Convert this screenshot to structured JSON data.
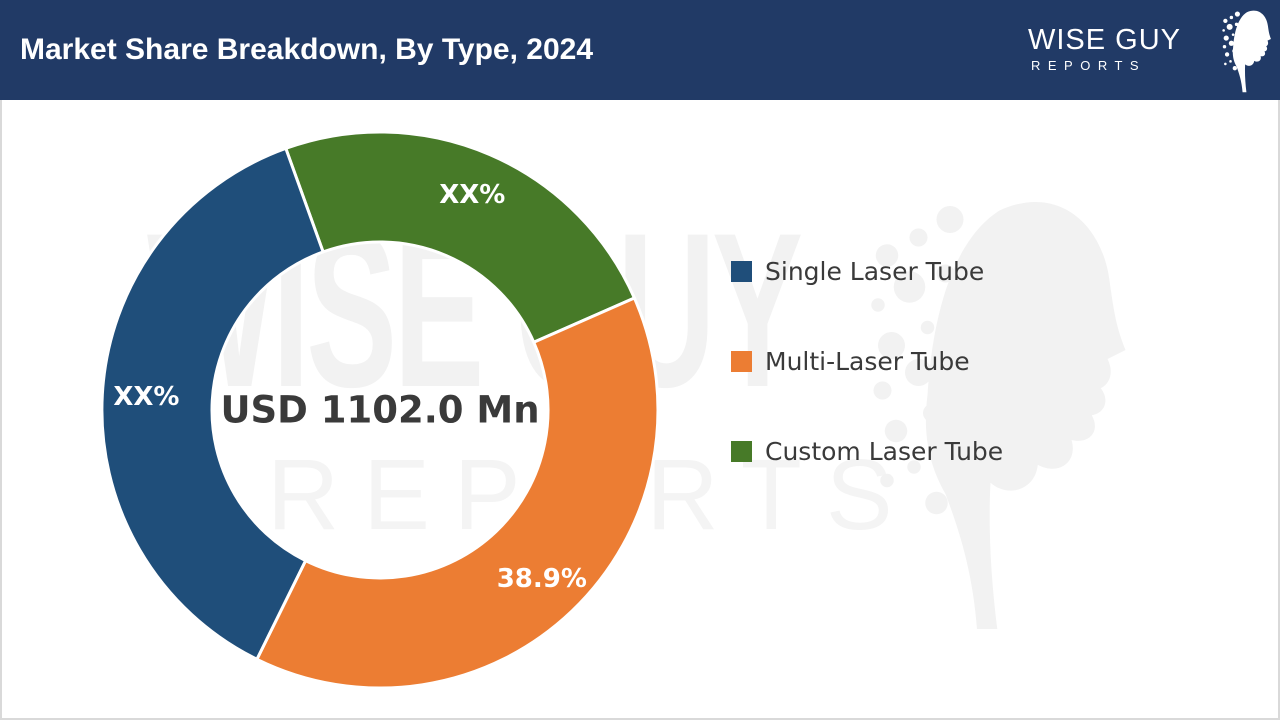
{
  "header": {
    "title": "Market Share Breakdown, By Type, 2024",
    "background_color": "#213A66",
    "logo": {
      "line1": "WISE GUY",
      "line2": "REPORTS"
    }
  },
  "chart_data": {
    "type": "pie",
    "subtype": "donut",
    "title": "Market Share Breakdown, By Type, 2024",
    "center_label": "USD 1102.0 Mn",
    "start_angle_deg": -19.8,
    "legend_position": "right",
    "slices": [
      {
        "name": "Custom Laser Tube",
        "value_pct": 23.9,
        "display_label": "XX%",
        "color": "#477A28"
      },
      {
        "name": "Multi-Laser Tube",
        "value_pct": 38.9,
        "display_label": "38.9%",
        "color": "#EC7D33"
      },
      {
        "name": "Single Laser Tube",
        "value_pct": 37.2,
        "display_label": "XX%",
        "color": "#1F4E7A"
      }
    ],
    "legend": [
      {
        "label": "Single Laser Tube",
        "color": "#1F4E7A"
      },
      {
        "label": "Multi-Laser Tube",
        "color": "#EC7D33"
      },
      {
        "label": "Custom Laser Tube",
        "color": "#477A28"
      }
    ]
  },
  "watermark": {
    "line1": "WISE GUY",
    "line2": "REPORTS"
  }
}
